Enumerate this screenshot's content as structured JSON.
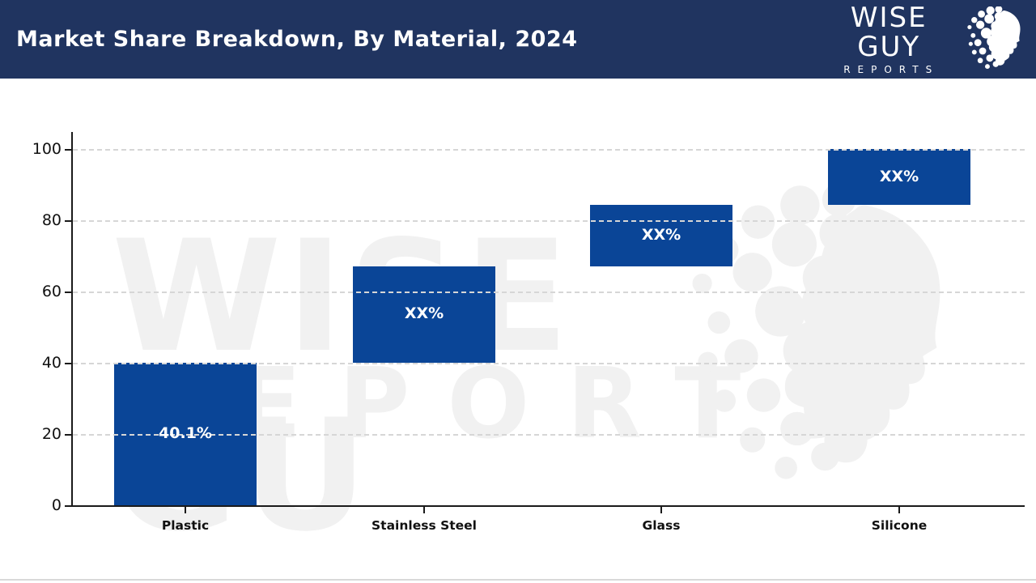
{
  "header": {
    "title": "Market Share Breakdown, By Material, 2024",
    "logo": {
      "line1": "WISE GUY",
      "line2": "REPORTS"
    }
  },
  "watermark": {
    "line1": "WISE GU",
    "line2": "REPORTS"
  },
  "colors": {
    "header_bg": "#203460",
    "bar_fill": "#0a4597",
    "bar_label_text": "#ffffff",
    "gridline": "#d6d6d6",
    "axis": "#1a1a1a",
    "tick_text": "#111111",
    "watermark": "#f1f1f1",
    "background": "#ffffff"
  },
  "chart_data": {
    "type": "bar",
    "subtype": "waterfall-floating-bars",
    "title": "Market Share Breakdown, By Material, 2024",
    "categories": [
      "Plastic",
      "Stainless Steel",
      "Glass",
      "Silicone"
    ],
    "segments": [
      {
        "category": "Plastic",
        "start": 0,
        "end": 40.1,
        "label": "40.1%"
      },
      {
        "category": "Stainless Steel",
        "start": 40.1,
        "end": 67.1,
        "label": "XX%"
      },
      {
        "category": "Glass",
        "start": 67.1,
        "end": 84.3,
        "label": "XX%"
      },
      {
        "category": "Silicone",
        "start": 84.3,
        "end": 100,
        "label": "XX%"
      }
    ],
    "xlabel": "",
    "ylabel": "",
    "ylim": [
      0,
      100
    ],
    "yticks": [
      0,
      20,
      40,
      60,
      80,
      100
    ],
    "grid": "horizontal-dashed, drawn above bars",
    "legend": null
  }
}
